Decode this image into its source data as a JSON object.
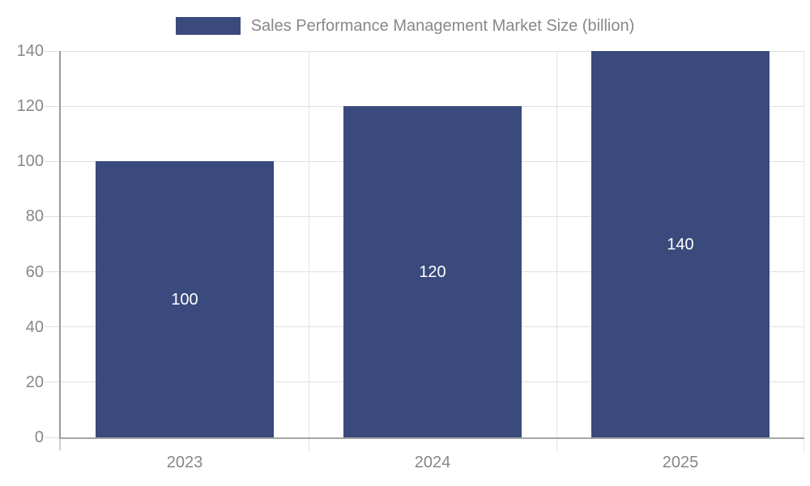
{
  "chart_data": {
    "type": "bar",
    "title": "Sales Performance Management Market Size (billion)",
    "legend": [
      "Sales Performance Management Market Size (billion)"
    ],
    "legend_position": "top-center",
    "categories": [
      "2023",
      "2024",
      "2025"
    ],
    "values": [
      100,
      120,
      140
    ],
    "bar_labels": [
      "100",
      "120",
      "140"
    ],
    "xlabel": "",
    "ylabel": "",
    "ylim": [
      0,
      140
    ],
    "yticks": [
      0,
      20,
      40,
      60,
      80,
      100,
      120,
      140
    ],
    "grid": true,
    "colors": {
      "bar": "#3A4A7D",
      "bar_label_text": "#ffffff",
      "axis_text": "#878787",
      "legend_text": "#888888",
      "gridline": "#e0e0e0",
      "axis_line": "#9a9a9a",
      "background": "#ffffff"
    }
  }
}
